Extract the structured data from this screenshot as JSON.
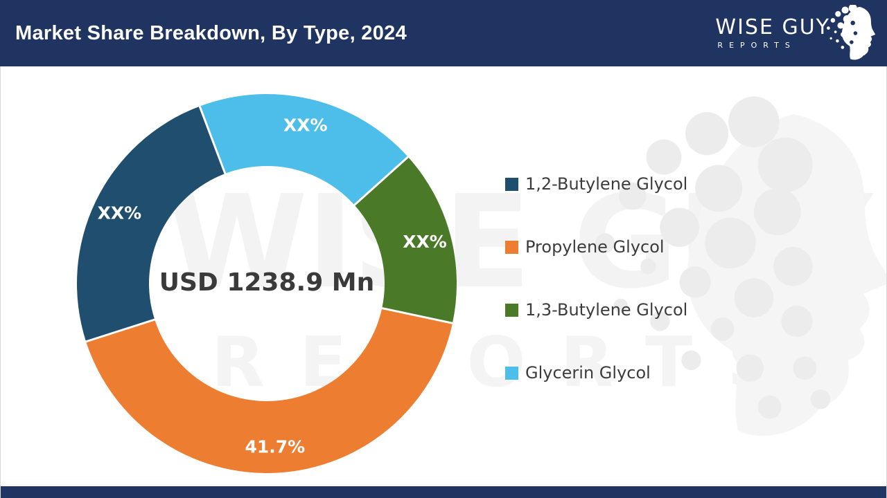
{
  "page": {
    "header": {
      "title": "Market Share Breakdown, By Type, 2024"
    },
    "logo": {
      "name": "WISE GUY",
      "sub": "REPORTS"
    },
    "watermark": {
      "line1": "WISE GUY",
      "line2": "REPORTS"
    }
  },
  "colors": {
    "header_bar": "#1f3460",
    "footer_bar": "#1f3460",
    "legend_text": "#3c3c3c",
    "center_text": "#3a3a3a"
  },
  "chart_data": {
    "type": "pie",
    "subtype": "donut",
    "title": "Market Share Breakdown, By Type, 2024",
    "center_label": "USD 1238.9 Mn",
    "start_angle_deg": -20.7,
    "segments": [
      {
        "name": "Glycerin Glycol",
        "percent": 19.1,
        "display_label": "XX%",
        "color": "#4dbde9"
      },
      {
        "name": "1,3-Butylene Glycol",
        "percent": 15.0,
        "display_label": "XX%",
        "color": "#4a7a28"
      },
      {
        "name": "Propylene Glycol",
        "percent": 41.7,
        "display_label": "41.7%",
        "color": "#ed7d31"
      },
      {
        "name": "1,2-Butylene Glycol",
        "percent": 24.2,
        "display_label": "XX%",
        "color": "#1f4e6e"
      }
    ],
    "legend_order": [
      3,
      2,
      1,
      0
    ],
    "legend_position": "right"
  }
}
